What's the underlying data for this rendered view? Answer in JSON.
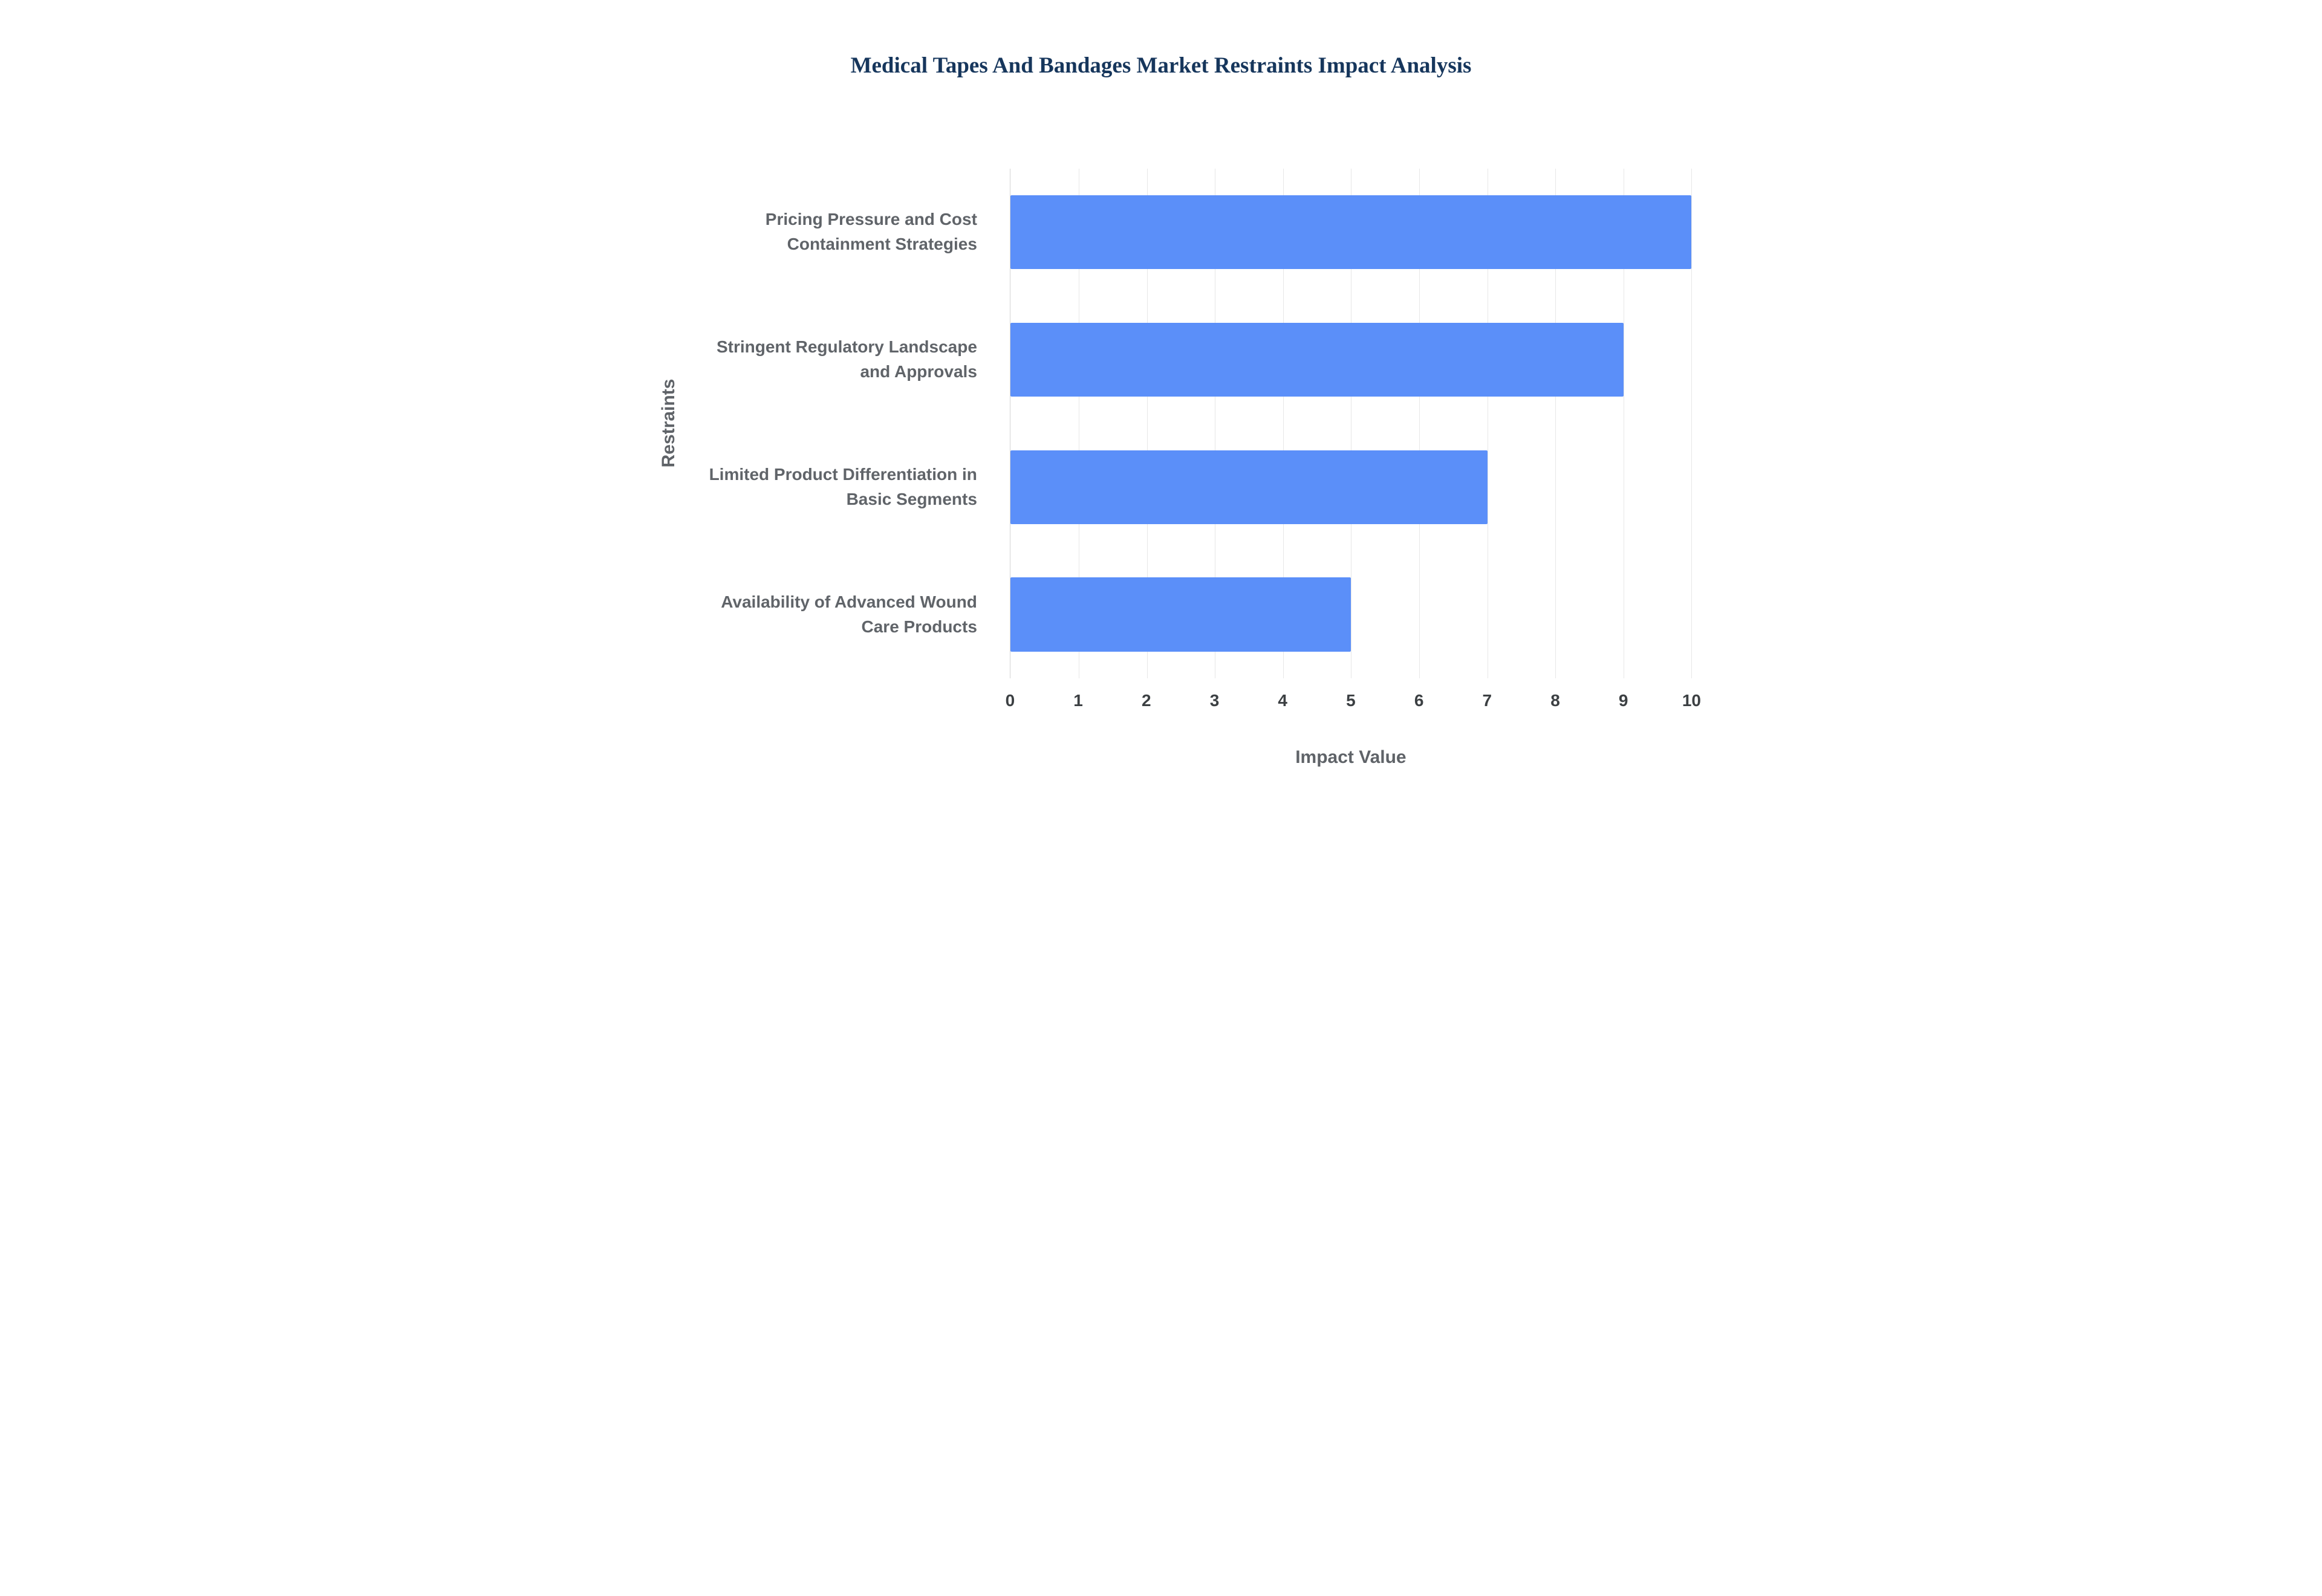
{
  "chart_data": {
    "type": "bar",
    "orientation": "horizontal",
    "title": "Medical Tapes And Bandages Market Restraints Impact Analysis",
    "categories": [
      "Pricing Pressure and Cost Containment Strategies",
      "Stringent Regulatory Landscape and Approvals",
      "Limited Product Differentiation in Basic Segments",
      "Availability of Advanced Wound Care Products"
    ],
    "values": [
      10,
      9,
      7,
      5
    ],
    "xlabel": "Impact Value",
    "ylabel": "Restraints",
    "xlim": [
      0,
      10
    ],
    "xticks": [
      0,
      1,
      2,
      3,
      4,
      5,
      6,
      7,
      8,
      9,
      10
    ],
    "grid": true,
    "legend_position": "none",
    "colors": {
      "bar": "#5b8ff9",
      "title": "#16365c",
      "axis_label": "#5f6368",
      "tick_label": "#3c4043",
      "gridline": "#e7e7e7",
      "axis_line": "#d4d4d4",
      "background": "#ffffff"
    }
  }
}
